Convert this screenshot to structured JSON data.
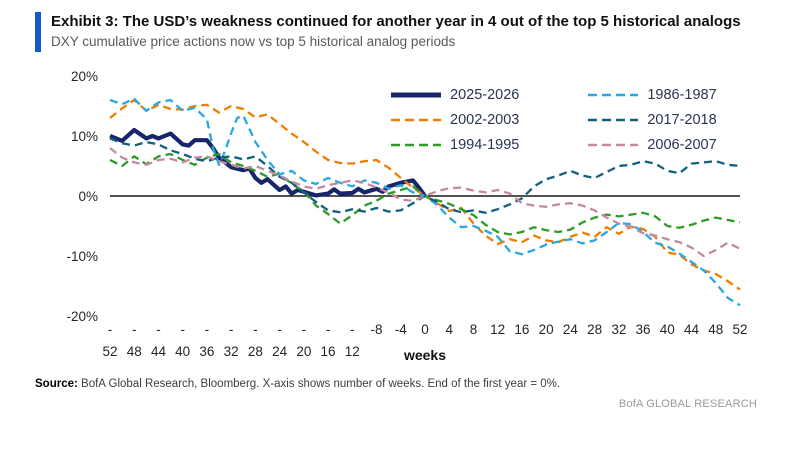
{
  "header": {
    "title": "Exhibit 3: The USD’s weakness continued for another year in 4 out of the top 5 historical analogs",
    "subtitle": "DXY cumulative price actions now vs top 5 historical analog periods",
    "accent_color": "#1859c9"
  },
  "footer": {
    "source_label": "Source:",
    "source_text": " BofA Global Research, Bloomberg. X-axis shows number of weeks. End of the first year = 0%.",
    "brand": "BofA GLOBAL RESEARCH"
  },
  "chart_data": {
    "type": "line",
    "title": "",
    "xlabel": "weeks",
    "ylabel": "",
    "xlim": [
      -52,
      52
    ],
    "ylim": [
      -20,
      20
    ],
    "grid": false,
    "zero_line": true,
    "legend_position": "inside-top-right",
    "x_ticks": [
      -52,
      -48,
      -44,
      -40,
      -36,
      -32,
      -28,
      -24,
      -20,
      -16,
      -12,
      -8,
      -4,
      0,
      4,
      8,
      12,
      16,
      20,
      24,
      28,
      32,
      36,
      40,
      44,
      48,
      52
    ],
    "y_ticks": [
      {
        "label": "20%",
        "value": 20
      },
      {
        "label": "10%",
        "value": 10
      },
      {
        "label": "0%",
        "value": 0
      },
      {
        "label": "-10%",
        "value": -10
      },
      {
        "label": "-20%",
        "value": -20
      }
    ],
    "legend_columns": [
      [
        0,
        1,
        2
      ],
      [
        3,
        4,
        5
      ]
    ],
    "series": [
      {
        "name": "2025-2026",
        "color": "#17266b",
        "style": "solid",
        "width": 4.2,
        "points": [
          [
            -52,
            10
          ],
          [
            -50,
            9.2
          ],
          [
            -48,
            11
          ],
          [
            -46,
            9.6
          ],
          [
            -45,
            10
          ],
          [
            -44,
            9.6
          ],
          [
            -42,
            10.4
          ],
          [
            -40,
            8.6
          ],
          [
            -39,
            8.4
          ],
          [
            -38,
            9.3
          ],
          [
            -36,
            9.3
          ],
          [
            -35,
            8
          ],
          [
            -34,
            6.4
          ],
          [
            -32,
            4.8
          ],
          [
            -30,
            4.3
          ],
          [
            -29,
            4.6
          ],
          [
            -28,
            3
          ],
          [
            -27,
            2.2
          ],
          [
            -26,
            2.8
          ],
          [
            -24,
            1
          ],
          [
            -23,
            1.6
          ],
          [
            -22,
            0.4
          ],
          [
            -21,
            1
          ],
          [
            -20,
            0.7
          ],
          [
            -18,
            0.1
          ],
          [
            -16,
            0.4
          ],
          [
            -15,
            1.1
          ],
          [
            -14,
            0.4
          ],
          [
            -12,
            0.5
          ],
          [
            -11,
            1.2
          ],
          [
            -10,
            0.6
          ],
          [
            -8,
            1.2
          ],
          [
            -7,
            0.7
          ],
          [
            -6,
            1.6
          ],
          [
            -4,
            2.2
          ],
          [
            -2,
            2.6
          ],
          [
            -1,
            1.4
          ],
          [
            0,
            0
          ]
        ]
      },
      {
        "name": "2002-2003",
        "color": "#ef7d00",
        "style": "dashed",
        "width": 2.3,
        "points": [
          [
            -52,
            13
          ],
          [
            -50,
            14.6
          ],
          [
            -48,
            16
          ],
          [
            -46,
            14.2
          ],
          [
            -44,
            15.2
          ],
          [
            -42,
            14.5
          ],
          [
            -40,
            14.4
          ],
          [
            -38,
            15
          ],
          [
            -36,
            15.2
          ],
          [
            -34,
            13.9
          ],
          [
            -32,
            15
          ],
          [
            -30,
            14.5
          ],
          [
            -28,
            13.1
          ],
          [
            -26,
            13.6
          ],
          [
            -24,
            12
          ],
          [
            -22,
            10.4
          ],
          [
            -20,
            9
          ],
          [
            -18,
            7.4
          ],
          [
            -16,
            6
          ],
          [
            -14,
            5.5
          ],
          [
            -12,
            5.4
          ],
          [
            -10,
            5.8
          ],
          [
            -8,
            6
          ],
          [
            -6,
            4.7
          ],
          [
            -4,
            3
          ],
          [
            -2,
            1.4
          ],
          [
            0,
            0
          ],
          [
            2,
            -1.2
          ],
          [
            4,
            -2.5
          ],
          [
            6,
            -2
          ],
          [
            8,
            -4.6
          ],
          [
            10,
            -6.6
          ],
          [
            12,
            -8
          ],
          [
            14,
            -7.2
          ],
          [
            16,
            -7.7
          ],
          [
            18,
            -6.6
          ],
          [
            20,
            -7.4
          ],
          [
            22,
            -7.7
          ],
          [
            24,
            -6.8
          ],
          [
            26,
            -6.1
          ],
          [
            28,
            -6.8
          ],
          [
            30,
            -5.2
          ],
          [
            32,
            -6.3
          ],
          [
            34,
            -5.1
          ],
          [
            36,
            -5.5
          ],
          [
            38,
            -6.8
          ],
          [
            40,
            -9.4
          ],
          [
            42,
            -9.8
          ],
          [
            44,
            -11.4
          ],
          [
            46,
            -12.4
          ],
          [
            48,
            -13
          ],
          [
            50,
            -14.2
          ],
          [
            52,
            -15.6
          ]
        ]
      },
      {
        "name": "1994-1995",
        "color": "#2e9b27",
        "style": "dashed",
        "width": 2.3,
        "points": [
          [
            -52,
            6
          ],
          [
            -50,
            5
          ],
          [
            -48,
            6.6
          ],
          [
            -46,
            5.3
          ],
          [
            -44,
            6.6
          ],
          [
            -42,
            7
          ],
          [
            -40,
            6
          ],
          [
            -38,
            5.2
          ],
          [
            -36,
            6.4
          ],
          [
            -34,
            7
          ],
          [
            -32,
            5.6
          ],
          [
            -30,
            5
          ],
          [
            -28,
            4.2
          ],
          [
            -26,
            3.2
          ],
          [
            -24,
            3.7
          ],
          [
            -22,
            2
          ],
          [
            -20,
            0.8
          ],
          [
            -18,
            -1.6
          ],
          [
            -16,
            -3
          ],
          [
            -14,
            -4.6
          ],
          [
            -12,
            -3.2
          ],
          [
            -10,
            -1.6
          ],
          [
            -8,
            -0.8
          ],
          [
            -6,
            0.4
          ],
          [
            -4,
            1
          ],
          [
            -2,
            1.6
          ],
          [
            0,
            0
          ],
          [
            2,
            -0.7
          ],
          [
            4,
            -1.3
          ],
          [
            6,
            -2.2
          ],
          [
            8,
            -3.2
          ],
          [
            10,
            -4.8
          ],
          [
            12,
            -6
          ],
          [
            14,
            -6.4
          ],
          [
            16,
            -6
          ],
          [
            18,
            -5.2
          ],
          [
            20,
            -5.7
          ],
          [
            22,
            -6
          ],
          [
            24,
            -5.6
          ],
          [
            26,
            -4.4
          ],
          [
            28,
            -3.6
          ],
          [
            30,
            -3.1
          ],
          [
            32,
            -3.4
          ],
          [
            34,
            -3.1
          ],
          [
            36,
            -2.8
          ],
          [
            38,
            -3.4
          ],
          [
            40,
            -5
          ],
          [
            42,
            -5.3
          ],
          [
            44,
            -4.8
          ],
          [
            46,
            -4.1
          ],
          [
            48,
            -3.6
          ],
          [
            50,
            -4
          ],
          [
            52,
            -4.4
          ]
        ]
      },
      {
        "name": "1986-1987",
        "color": "#2aa7e0",
        "style": "dashed",
        "width": 2.3,
        "points": [
          [
            -52,
            16
          ],
          [
            -50,
            15.3
          ],
          [
            -48,
            16.2
          ],
          [
            -46,
            14.2
          ],
          [
            -44,
            15.6
          ],
          [
            -42,
            16
          ],
          [
            -40,
            14.2
          ],
          [
            -38,
            14.7
          ],
          [
            -36,
            12.8
          ],
          [
            -35,
            8
          ],
          [
            -34,
            5.2
          ],
          [
            -33,
            7.5
          ],
          [
            -32,
            10.5
          ],
          [
            -31,
            13
          ],
          [
            -30,
            13.4
          ],
          [
            -28,
            9
          ],
          [
            -26,
            6
          ],
          [
            -24,
            3.6
          ],
          [
            -22,
            4.2
          ],
          [
            -20,
            2.6
          ],
          [
            -18,
            2
          ],
          [
            -16,
            3
          ],
          [
            -14,
            2.2
          ],
          [
            -12,
            1.6
          ],
          [
            -10,
            2.6
          ],
          [
            -8,
            2.2
          ],
          [
            -6,
            1.2
          ],
          [
            -4,
            1.8
          ],
          [
            -2,
            0.6
          ],
          [
            0,
            0
          ],
          [
            2,
            -1.5
          ],
          [
            4,
            -3.6
          ],
          [
            6,
            -5.2
          ],
          [
            8,
            -5
          ],
          [
            10,
            -5.8
          ],
          [
            12,
            -6.8
          ],
          [
            14,
            -9.2
          ],
          [
            16,
            -9.7
          ],
          [
            18,
            -9
          ],
          [
            20,
            -8.1
          ],
          [
            22,
            -7.6
          ],
          [
            24,
            -7.2
          ],
          [
            26,
            -7.9
          ],
          [
            28,
            -7.4
          ],
          [
            30,
            -6
          ],
          [
            32,
            -4.5
          ],
          [
            34,
            -4.7
          ],
          [
            36,
            -6
          ],
          [
            38,
            -7.8
          ],
          [
            40,
            -8.4
          ],
          [
            42,
            -9.6
          ],
          [
            44,
            -11
          ],
          [
            46,
            -12.4
          ],
          [
            48,
            -14.5
          ],
          [
            50,
            -17
          ],
          [
            52,
            -18.2
          ]
        ]
      },
      {
        "name": "2017-2018",
        "color": "#135f7f",
        "style": "dashed",
        "width": 2.3,
        "points": [
          [
            -52,
            9.6
          ],
          [
            -50,
            8.8
          ],
          [
            -48,
            8.4
          ],
          [
            -46,
            9
          ],
          [
            -44,
            8.6
          ],
          [
            -42,
            7.6
          ],
          [
            -40,
            7
          ],
          [
            -38,
            6.2
          ],
          [
            -36,
            5.8
          ],
          [
            -34,
            6.4
          ],
          [
            -32,
            6.6
          ],
          [
            -30,
            6.1
          ],
          [
            -28,
            6.6
          ],
          [
            -26,
            5
          ],
          [
            -24,
            3.2
          ],
          [
            -22,
            2.2
          ],
          [
            -20,
            0.6
          ],
          [
            -18,
            -1
          ],
          [
            -16,
            -2.4
          ],
          [
            -14,
            -2.7
          ],
          [
            -12,
            -2.2
          ],
          [
            -10,
            -2.6
          ],
          [
            -8,
            -2
          ],
          [
            -6,
            -2.6
          ],
          [
            -4,
            -2.4
          ],
          [
            -2,
            -1.2
          ],
          [
            0,
            0
          ],
          [
            2,
            -1
          ],
          [
            4,
            -2.2
          ],
          [
            6,
            -2.7
          ],
          [
            8,
            -2.4
          ],
          [
            10,
            -2.8
          ],
          [
            12,
            -2.2
          ],
          [
            14,
            -1.4
          ],
          [
            16,
            -0.4
          ],
          [
            18,
            1.6
          ],
          [
            20,
            2.8
          ],
          [
            22,
            3.4
          ],
          [
            24,
            4.2
          ],
          [
            26,
            3.4
          ],
          [
            28,
            3
          ],
          [
            30,
            4
          ],
          [
            32,
            5
          ],
          [
            34,
            5.2
          ],
          [
            36,
            5.8
          ],
          [
            38,
            5.4
          ],
          [
            40,
            4.2
          ],
          [
            42,
            3.8
          ],
          [
            44,
            5.4
          ],
          [
            46,
            5.6
          ],
          [
            48,
            5.8
          ],
          [
            50,
            5.2
          ],
          [
            52,
            5
          ]
        ]
      },
      {
        "name": "2006-2007",
        "color": "#c489a0",
        "style": "dashed",
        "width": 2.3,
        "points": [
          [
            -52,
            8
          ],
          [
            -50,
            6.4
          ],
          [
            -48,
            5.6
          ],
          [
            -46,
            5.2
          ],
          [
            -44,
            6
          ],
          [
            -42,
            6.2
          ],
          [
            -40,
            5.6
          ],
          [
            -38,
            6.4
          ],
          [
            -36,
            6.6
          ],
          [
            -34,
            5.8
          ],
          [
            -32,
            5.2
          ],
          [
            -30,
            4.6
          ],
          [
            -28,
            5
          ],
          [
            -26,
            4.2
          ],
          [
            -24,
            3.4
          ],
          [
            -22,
            2.4
          ],
          [
            -20,
            1.6
          ],
          [
            -18,
            1.2
          ],
          [
            -16,
            1.8
          ],
          [
            -14,
            2.2
          ],
          [
            -12,
            2.6
          ],
          [
            -10,
            2.2
          ],
          [
            -8,
            1.4
          ],
          [
            -6,
            0.6
          ],
          [
            -4,
            -0.6
          ],
          [
            -2,
            -0.8
          ],
          [
            0,
            0
          ],
          [
            2,
            0.8
          ],
          [
            4,
            1.3
          ],
          [
            6,
            1.4
          ],
          [
            8,
            0.9
          ],
          [
            10,
            0.6
          ],
          [
            12,
            1
          ],
          [
            14,
            0.4
          ],
          [
            16,
            -1.2
          ],
          [
            18,
            -1.6
          ],
          [
            20,
            -1.8
          ],
          [
            22,
            -1.4
          ],
          [
            24,
            -1.2
          ],
          [
            26,
            -1.6
          ],
          [
            28,
            -2.4
          ],
          [
            30,
            -3.6
          ],
          [
            32,
            -4.6
          ],
          [
            34,
            -5.2
          ],
          [
            36,
            -6.2
          ],
          [
            38,
            -6.6
          ],
          [
            40,
            -7.2
          ],
          [
            42,
            -7.7
          ],
          [
            44,
            -8.6
          ],
          [
            46,
            -10
          ],
          [
            48,
            -9
          ],
          [
            50,
            -7.8
          ],
          [
            52,
            -8.8
          ]
        ]
      }
    ]
  }
}
